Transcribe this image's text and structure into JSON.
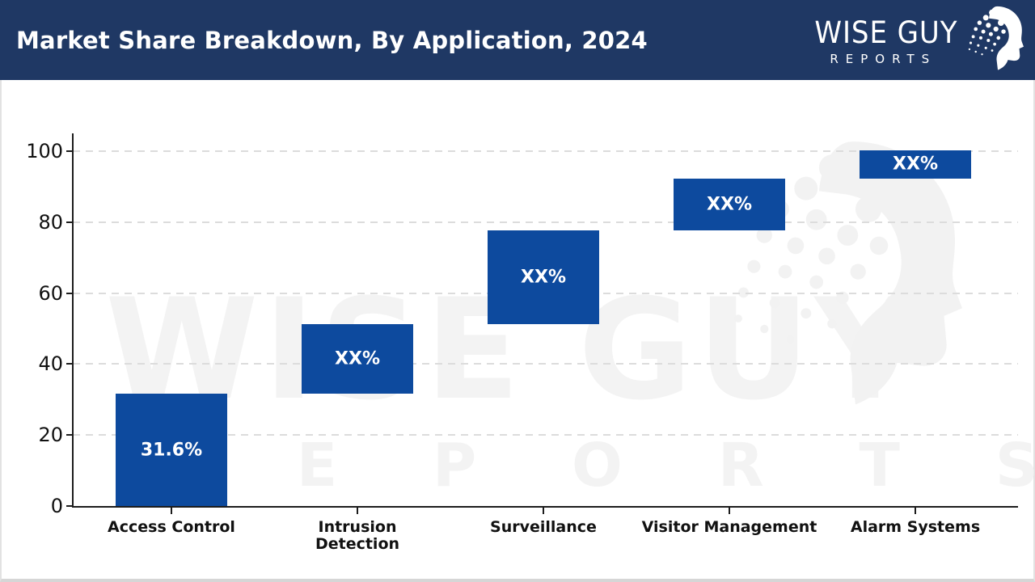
{
  "header": {
    "title": "Market Share Breakdown, By Application, 2024",
    "bg_color": "#1f3864",
    "logo": {
      "line1": "WISE GUY",
      "line2": "REPORTS"
    }
  },
  "watermark": {
    "line1": "WISE GUY",
    "line2": "R E P O R T S"
  },
  "chart_data": {
    "type": "bar",
    "subtype": "waterfall-floating-bars",
    "title": "Market Share Breakdown, By Application, 2024",
    "categories": [
      "Access Control",
      "Intrusion\nDetection",
      "Surveillance",
      "Visitor Management",
      "Alarm Systems"
    ],
    "bars": [
      {
        "category": "Access Control",
        "start": 0,
        "end": 31.6,
        "label": "31.6%"
      },
      {
        "category": "Intrusion Detection",
        "start": 31.6,
        "end": 51.3,
        "label": "XX%"
      },
      {
        "category": "Surveillance",
        "start": 51.3,
        "end": 77.7,
        "label": "XX%"
      },
      {
        "category": "Visitor Management",
        "start": 77.7,
        "end": 92.3,
        "label": "XX%"
      },
      {
        "category": "Alarm Systems",
        "start": 92.3,
        "end": 100.2,
        "label": "XX%"
      }
    ],
    "yticks": [
      0,
      20,
      40,
      60,
      80,
      100
    ],
    "ylim": [
      0,
      105
    ],
    "xlabel": "",
    "ylabel": "",
    "grid": "horizontal-dashed",
    "legend": "none",
    "bar_color": "#0d4a9e",
    "bar_label_color": "#ffffff",
    "axis_color": "#1c1c1c",
    "grid_color": "#dcdcdc"
  }
}
